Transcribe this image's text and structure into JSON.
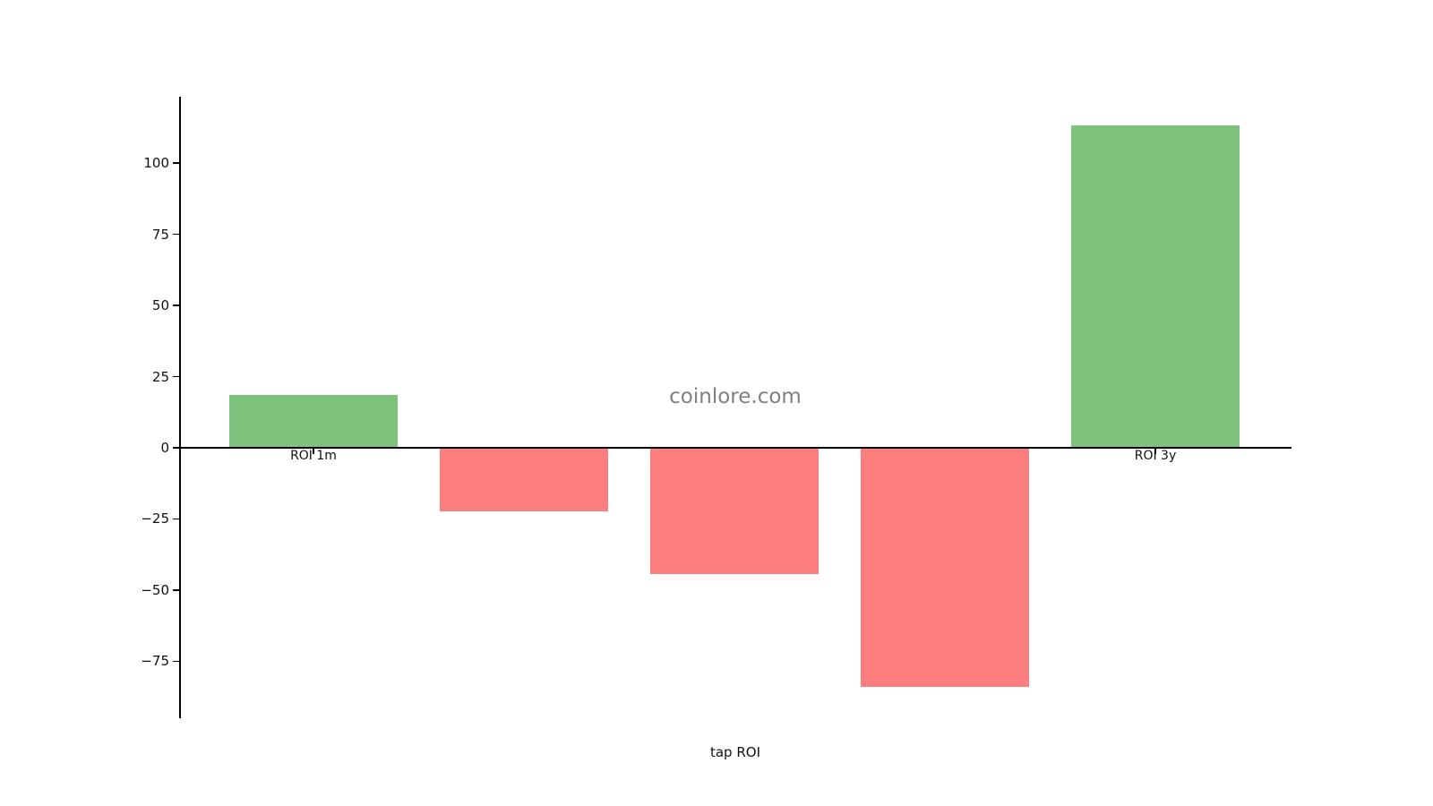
{
  "watermark": "coinlore.com",
  "chart_data": {
    "type": "bar",
    "categories": [
      "ROI 1m",
      "",
      "",
      "",
      "ROI 3y"
    ],
    "values": [
      18.6,
      -22.2,
      -44.2,
      -84.1,
      113.3
    ],
    "bar_colors": [
      "#7dc37d",
      "#fc7e7e",
      "#fc7e7e",
      "#fc7e7e",
      "#7dc37d"
    ],
    "positive_color": "#7dc37d",
    "negative_color": "#fc7e7e",
    "title": "",
    "xlabel": "tap ROI",
    "ylabel": "",
    "ylim": [
      -95,
      123.3
    ],
    "yticks": [
      100,
      75,
      50,
      25,
      0,
      -25,
      -50,
      -75
    ],
    "grid": false,
    "legend": null,
    "axis_color": "#000000",
    "watermark_color": "#808080"
  }
}
